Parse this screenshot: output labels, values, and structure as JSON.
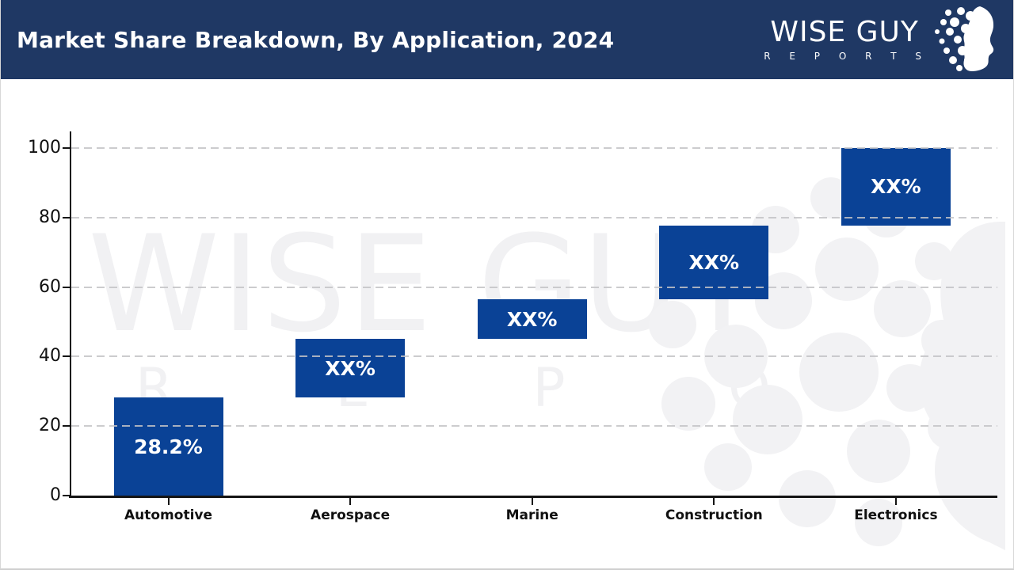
{
  "header": {
    "title": "Market Share Breakdown, By Application, 2024",
    "logo": {
      "line1": "WISE GUY",
      "line2": "R E P O R T S"
    }
  },
  "watermark": {
    "line1": "WISE GUY",
    "line2": "R E P O R T S"
  },
  "colors": {
    "header_bg": "#1f3864",
    "bar": "#0a4296",
    "bar_label": "#ffffff",
    "axis": "#141414",
    "grid": "#c9c9cc",
    "watermark": "#f1f1f3"
  },
  "chart_data": {
    "type": "bar",
    "subtype": "waterfall",
    "title": "Market Share Breakdown, By Application, 2024",
    "xlabel": "",
    "ylabel": "",
    "categories": [
      "Automotive",
      "Aerospace",
      "Marine",
      "Construction",
      "Electronics"
    ],
    "segments": [
      {
        "category": "Automotive",
        "start": 0,
        "end": 28.2,
        "label": "28.2%"
      },
      {
        "category": "Aerospace",
        "start": 28.2,
        "end": 45.0,
        "label": "XX%"
      },
      {
        "category": "Marine",
        "start": 45.0,
        "end": 56.4,
        "label": "XX%"
      },
      {
        "category": "Construction",
        "start": 56.4,
        "end": 77.7,
        "label": "XX%"
      },
      {
        "category": "Electronics",
        "start": 77.7,
        "end": 100,
        "label": "XX%"
      }
    ],
    "yticks": [
      0,
      20,
      40,
      60,
      80,
      100
    ],
    "ylim": [
      0,
      104
    ],
    "grid": "horizontal-dashed",
    "legend": "none"
  }
}
